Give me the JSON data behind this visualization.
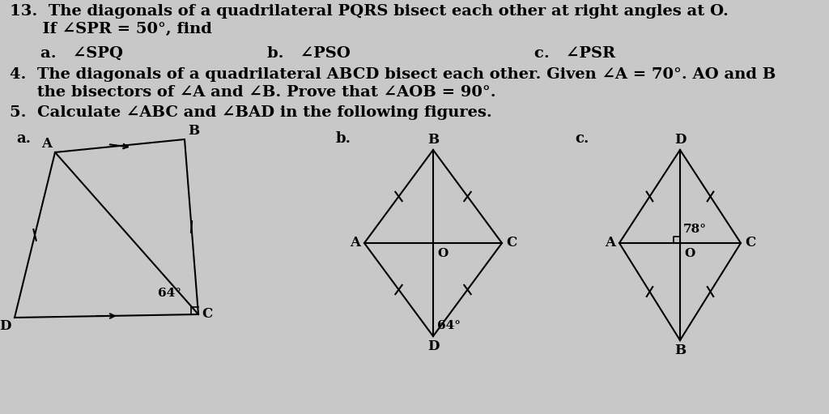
{
  "bg_color": "#c8c8c8",
  "fig_width": 10.24,
  "fig_height": 5.11,
  "line13_text": "13.  The diagonals of a quadrilateral PQRS bisect each other at right angles at O.",
  "line13b_text": "      If ∠SPR = 50°, find",
  "line_a_text": "a.   ∠SPQ",
  "line_b_text": "b.   ∠PSO",
  "line_c_text": "c.   ∠PSR",
  "line14_text": "4.  The diagonals of a quadrilateral ABCD bisect each other. Given ∠A = 70°. AO and B",
  "line14b_text": "     the bisectors of ∠A and ∠B. Prove that ∠AOB = 90°.",
  "line15_text": "5.  Calculate ∠ABC and ∠BAD in the following figures.",
  "fig_a_label": "a.",
  "fig_b_label": "b.",
  "fig_c_label": "c.",
  "angle_64_a": "64°",
  "angle_64_b": "64°",
  "angle_78_c": "78°"
}
